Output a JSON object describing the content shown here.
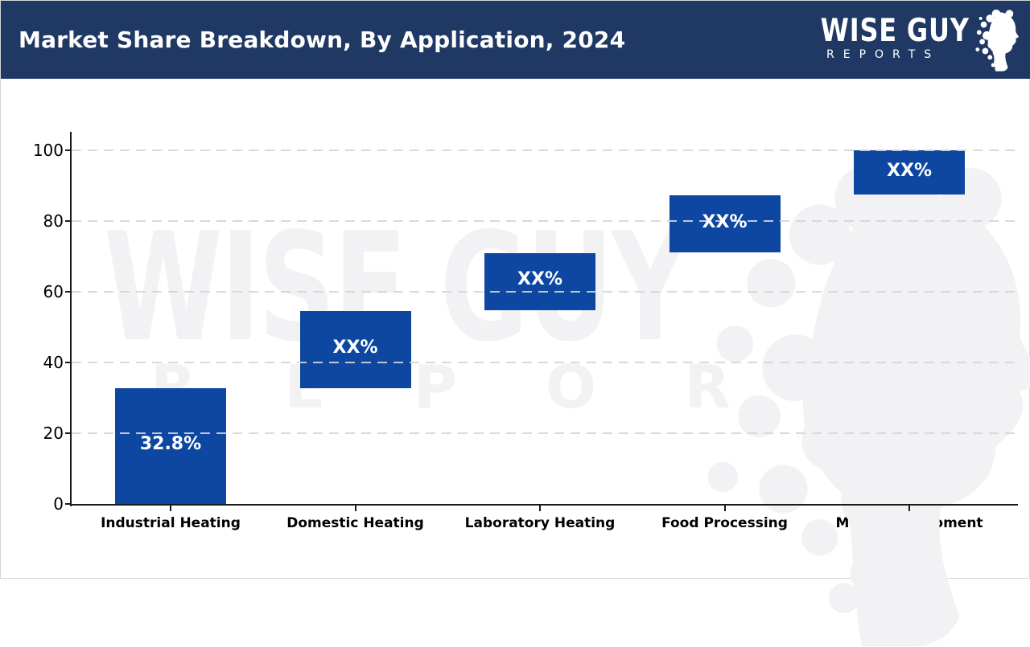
{
  "header": {
    "title": "Market Share Breakdown, By Application, 2024",
    "logo": {
      "line1": "WISE GUY",
      "line2": "REPORTS"
    }
  },
  "watermark": {
    "line1": "WISE GUY",
    "line2": "R E P O R T S"
  },
  "chart_data": {
    "type": "bar",
    "subtype": "waterfall (floating cumulative segments)",
    "title": "Market Share Breakdown, By Application, 2024",
    "unit": "percent market share",
    "categories": [
      "Industrial Heating",
      "Domestic Heating",
      "Laboratory Heating",
      "Food Processing",
      "Medical Equipment"
    ],
    "segments": [
      {
        "category": "Industrial Heating",
        "base": 0,
        "top": 32.8,
        "label": "32.8%"
      },
      {
        "category": "Domestic Heating",
        "base": 32.8,
        "top": 54.5,
        "label": "XX%"
      },
      {
        "category": "Laboratory Heating",
        "base": 54.8,
        "top": 71.0,
        "label": "XX%"
      },
      {
        "category": "Food Processing",
        "base": 71.1,
        "top": 87.3,
        "label": "XX%"
      },
      {
        "category": "Medical Equipment",
        "base": 87.5,
        "top": 100,
        "label": "XX%"
      }
    ],
    "yticks": [
      0,
      20,
      40,
      60,
      80,
      100
    ],
    "ylim": [
      0,
      105
    ],
    "grid": "horizontal dashed, drawn above bars",
    "legend": "none",
    "bar_color": "#0d47a1",
    "bar_label_color": "#ffffff"
  },
  "colors": {
    "header_bg": "#203864",
    "bar": "#0d47a1",
    "grid": "#d8d8d8",
    "axis": "#1a1a1a",
    "watermark": "#f2f2f4",
    "title_text": "#ffffff"
  }
}
